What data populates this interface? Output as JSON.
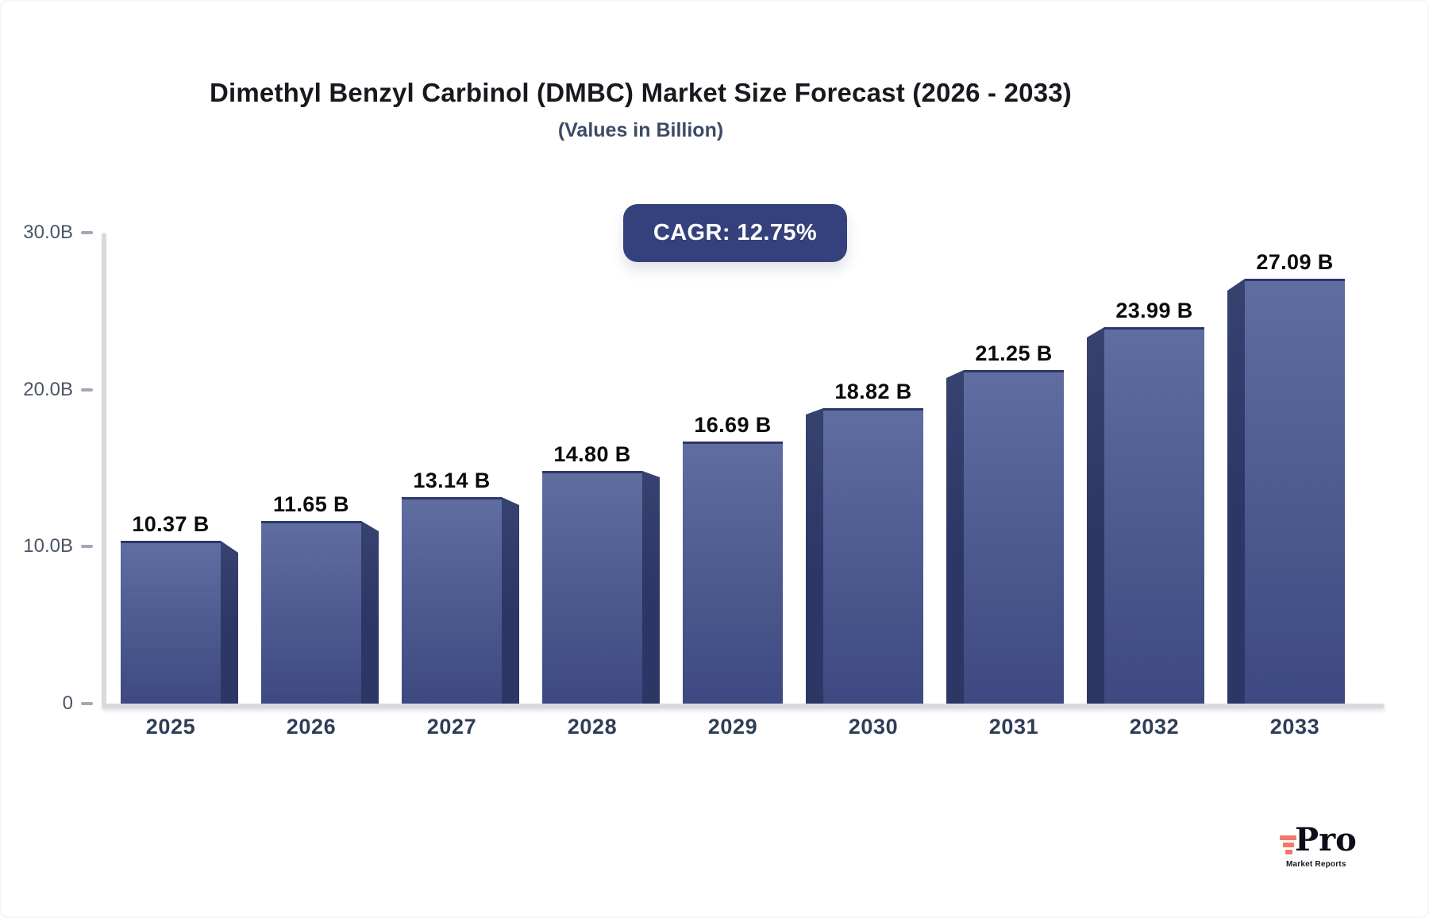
{
  "chart_data": {
    "type": "bar",
    "title": "Dimethyl Benzyl Carbinol (DMBC) Market Size Forecast (2026 - 2033)",
    "subtitle": "(Values in Billion)",
    "cagr_label": "CAGR: 12.75%",
    "categories": [
      "2025",
      "2026",
      "2027",
      "2028",
      "2029",
      "2030",
      "2031",
      "2032",
      "2033"
    ],
    "values": [
      10.37,
      11.65,
      13.14,
      14.8,
      16.69,
      18.82,
      21.25,
      23.99,
      27.09
    ],
    "bar_labels": [
      "10.37 B",
      "11.65 B",
      "13.14 B",
      "14.80 B",
      "16.69 B",
      "18.82 B",
      "21.25 B",
      "23.99 B",
      "27.09 B"
    ],
    "unit": "Billion",
    "ylim": [
      0,
      30
    ],
    "y_ticks": [
      {
        "value": 0,
        "label": "0"
      },
      {
        "value": 10,
        "label": "10.0B"
      },
      {
        "value": 20,
        "label": "20.0B"
      },
      {
        "value": 30,
        "label": "30.0B"
      }
    ],
    "grid": "off",
    "legend": "none",
    "colors": {
      "bar-face-top": "#5f6da1",
      "bar-face-bottom": "#3d4980",
      "bar-side": "#2d3766",
      "bar-top-edge": "#2b3768",
      "badge-bg": "#35417c",
      "badge-text": "#ffffff",
      "axis-line": "#d8dade",
      "tick-text": "#4b5565",
      "xlabel-text": "#2f3d56",
      "value-text": "#0b0b0c",
      "stripe-color": "#f4786a"
    }
  },
  "logo": {
    "name": "Pro",
    "tagline": "Market Reports"
  }
}
